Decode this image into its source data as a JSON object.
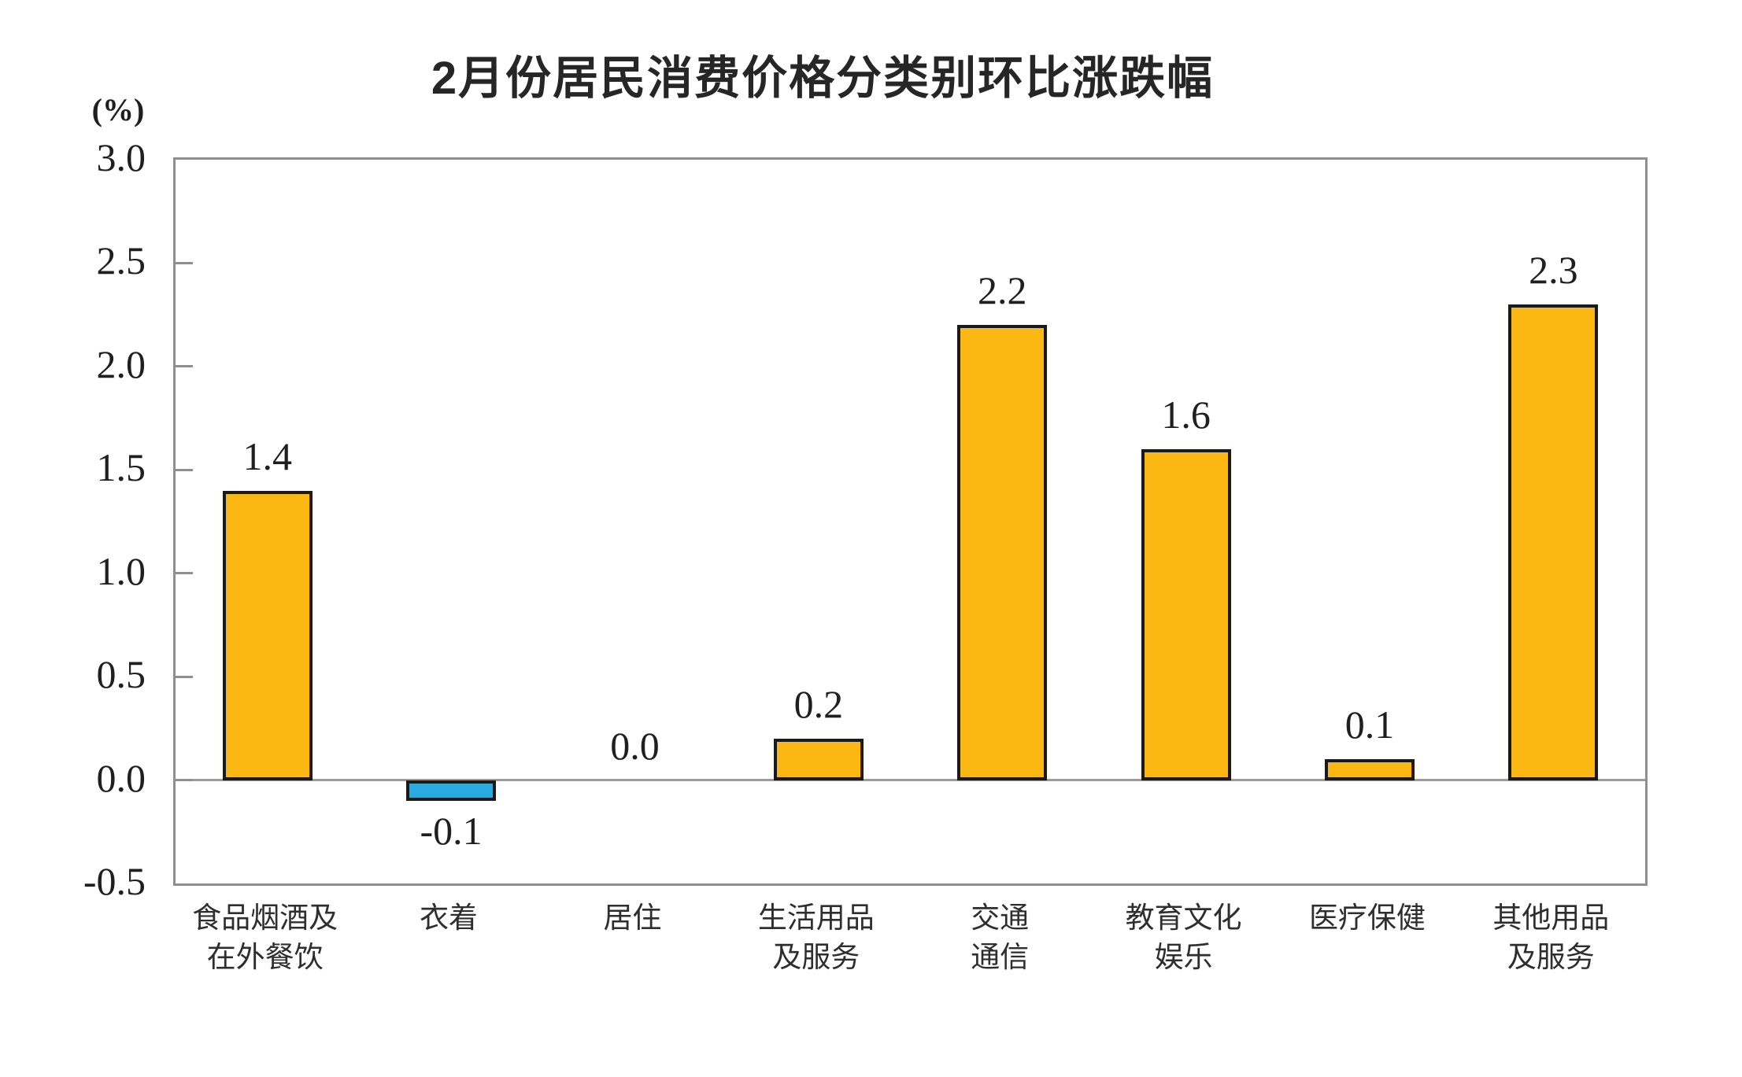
{
  "chart_data": {
    "type": "bar",
    "title": "2月份居民消费价格分类别环比涨跌幅",
    "unit_label": "(%)",
    "categories": [
      "食品烟酒及\n在外餐饮",
      "衣着",
      "居住",
      "生活用品\n及服务",
      "交通\n通信",
      "教育文化\n娱乐",
      "医疗保健",
      "其他用品\n及服务"
    ],
    "values": [
      1.4,
      -0.1,
      0.0,
      0.2,
      2.2,
      1.6,
      0.1,
      2.3
    ],
    "value_labels": [
      "1.4",
      "-0.1",
      "0.0",
      "0.2",
      "2.2",
      "1.6",
      "0.1",
      "2.3"
    ],
    "ylim": [
      -0.5,
      3.0
    ],
    "yticks": [
      3.0,
      2.5,
      2.0,
      1.5,
      1.0,
      0.5,
      0.0,
      -0.5
    ],
    "ytick_labels": [
      "3.0",
      "2.5",
      "2.0",
      "1.5",
      "1.0",
      "0.5",
      "0.0",
      "-0.5"
    ],
    "xlabel": "",
    "ylabel": "(%)",
    "grid": false,
    "legend": null,
    "colors": {
      "bar_positive": "#FBB712",
      "bar_negative": "#29ABE2",
      "bar_border": "#1d1a16",
      "axis": "#8f8f8f",
      "zero_line": "#9b9b9b",
      "text": "#1f1f1f"
    }
  }
}
